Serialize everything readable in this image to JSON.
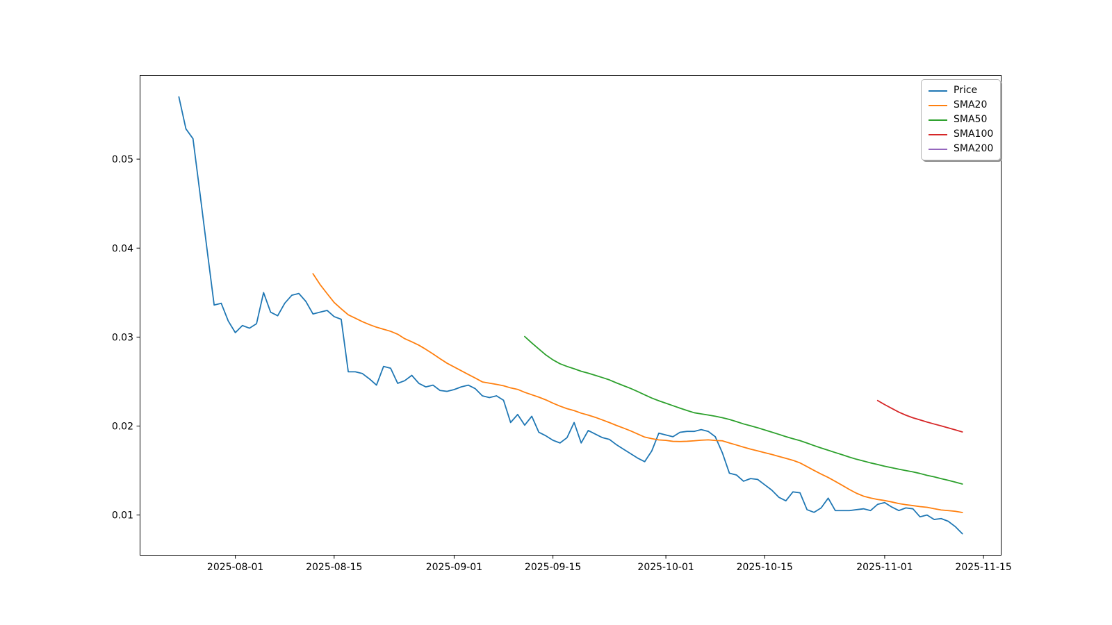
{
  "chart_data": {
    "type": "line",
    "title": "",
    "xlabel": "",
    "ylabel": "",
    "x_unit": "day",
    "x_start_date": "2025-07-24",
    "x_end_date": "2025-11-12",
    "n_points": 112,
    "grid": false,
    "legend_position": "upper-right",
    "background_color": "#ffffff",
    "axis_color": "#000000",
    "xlim_days": [
      -5.55,
      116.55
    ],
    "ylim": [
      0.005445,
      0.059455
    ],
    "x_ticks": [
      {
        "label": "2025-08-01",
        "day": 8
      },
      {
        "label": "2025-08-15",
        "day": 22
      },
      {
        "label": "2025-09-01",
        "day": 39
      },
      {
        "label": "2025-09-15",
        "day": 53
      },
      {
        "label": "2025-10-01",
        "day": 69
      },
      {
        "label": "2025-10-15",
        "day": 83
      },
      {
        "label": "2025-11-01",
        "day": 100
      },
      {
        "label": "2025-11-15",
        "day": 114
      }
    ],
    "y_ticks": [
      {
        "label": "0.01",
        "value": 0.01
      },
      {
        "label": "0.02",
        "value": 0.02
      },
      {
        "label": "0.03",
        "value": 0.03
      },
      {
        "label": "0.04",
        "value": 0.04
      },
      {
        "label": "0.05",
        "value": 0.05
      }
    ],
    "series": [
      {
        "name": "Price",
        "color": "#1f77b4",
        "start_index": 0,
        "values": [
          0.057,
          0.0534,
          0.0523,
          0.0461,
          0.0398,
          0.0336,
          0.0338,
          0.0318,
          0.0305,
          0.0313,
          0.031,
          0.0315,
          0.035,
          0.0328,
          0.0324,
          0.0338,
          0.0347,
          0.0349,
          0.034,
          0.0326,
          0.0328,
          0.033,
          0.0323,
          0.032,
          0.0261,
          0.0261,
          0.0259,
          0.0253,
          0.0246,
          0.0267,
          0.0265,
          0.0248,
          0.0251,
          0.0257,
          0.0248,
          0.0244,
          0.0246,
          0.024,
          0.0239,
          0.0241,
          0.0244,
          0.0246,
          0.0242,
          0.0234,
          0.0232,
          0.0234,
          0.0229,
          0.0204,
          0.0213,
          0.0201,
          0.0211,
          0.0193,
          0.0189,
          0.0184,
          0.0181,
          0.0187,
          0.0204,
          0.0181,
          0.0195,
          0.0191,
          0.0187,
          0.0185,
          0.0179,
          0.0174,
          0.0169,
          0.0164,
          0.016,
          0.0172,
          0.0192,
          0.019,
          0.0188,
          0.0193,
          0.0194,
          0.0194,
          0.0196,
          0.0194,
          0.0188,
          0.017,
          0.0147,
          0.0145,
          0.0138,
          0.0141,
          0.014,
          0.0134,
          0.0128,
          0.012,
          0.0116,
          0.0126,
          0.0125,
          0.0106,
          0.0103,
          0.0108,
          0.0119,
          0.0105,
          0.0105,
          0.0105,
          0.0106,
          0.0107,
          0.0105,
          0.0112,
          0.0114,
          0.0109,
          0.0105,
          0.0108,
          0.0107,
          0.0098,
          0.01,
          0.0095,
          0.0096,
          0.0093,
          0.0087,
          0.0079
        ]
      },
      {
        "name": "SMA20",
        "color": "#ff7f0e",
        "start_index": 19,
        "values": [
          0.03712,
          0.03591,
          0.03489,
          0.03389,
          0.03318,
          0.0325,
          0.03212,
          0.03173,
          0.0314,
          0.03111,
          0.03088,
          0.03065,
          0.03032,
          0.02982,
          0.02947,
          0.02909,
          0.02862,
          0.02811,
          0.02757,
          0.02706,
          0.02664,
          0.02622,
          0.0258,
          0.02539,
          0.02496,
          0.02482,
          0.02468,
          0.02453,
          0.02429,
          0.02412,
          0.02379,
          0.02352,
          0.02325,
          0.02294,
          0.02257,
          0.02224,
          0.02195,
          0.02174,
          0.02145,
          0.02123,
          0.02098,
          0.02069,
          0.02039,
          0.02007,
          0.01977,
          0.01946,
          0.01911,
          0.01876,
          0.01859,
          0.01844,
          0.01839,
          0.01828,
          0.01826,
          0.01829,
          0.01834,
          0.01841,
          0.01845,
          0.01838,
          0.01834,
          0.0181,
          0.01787,
          0.01763,
          0.01741,
          0.01721,
          0.01701,
          0.01681,
          0.01659,
          0.01637,
          0.01615,
          0.01586,
          0.01544,
          0.01501,
          0.0146,
          0.01422,
          0.01378,
          0.01333,
          0.01287,
          0.01245,
          0.01212,
          0.01191,
          0.01175,
          0.01163,
          0.01147,
          0.01129,
          0.01116,
          0.01106,
          0.01095,
          0.01087,
          0.01071,
          0.01057,
          0.0105,
          0.01042,
          0.01028
        ]
      },
      {
        "name": "SMA50",
        "color": "#2ca02c",
        "start_index": 49,
        "values": [
          0.03006,
          0.02934,
          0.02866,
          0.02799,
          0.02744,
          0.027,
          0.0267,
          0.02644,
          0.02616,
          0.02594,
          0.0257,
          0.02545,
          0.02519,
          0.02485,
          0.02454,
          0.02423,
          0.02388,
          0.02351,
          0.02315,
          0.02284,
          0.02257,
          0.02229,
          0.02201,
          0.02175,
          0.0215,
          0.02137,
          0.02124,
          0.0211,
          0.02094,
          0.02074,
          0.0205,
          0.02024,
          0.02003,
          0.01981,
          0.01956,
          0.01932,
          0.01907,
          0.01881,
          0.01858,
          0.01836,
          0.01809,
          0.0178,
          0.01753,
          0.01728,
          0.01702,
          0.01677,
          0.01651,
          0.01627,
          0.01607,
          0.01586,
          0.01568,
          0.01548,
          0.01532,
          0.01515,
          0.015,
          0.01485,
          0.01467,
          0.01446,
          0.01429,
          0.01409,
          0.0139,
          0.0137,
          0.01348
        ]
      },
      {
        "name": "SMA100",
        "color": "#d62728",
        "start_index": 99,
        "values": [
          0.02287,
          0.02241,
          0.02199,
          0.02157,
          0.02122,
          0.02093,
          0.02069,
          0.02045,
          0.02023,
          0.02002,
          0.0198,
          0.01957,
          0.01934
        ]
      },
      {
        "name": "SMA200",
        "color": "#9467bd",
        "start_index": 199,
        "values": []
      }
    ]
  }
}
